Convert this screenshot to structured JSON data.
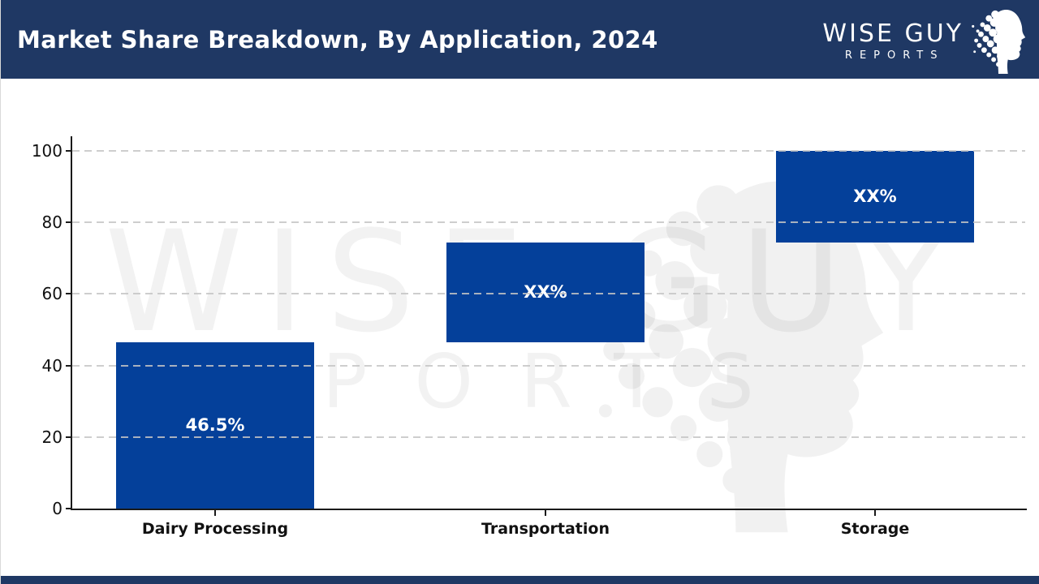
{
  "header": {
    "title": "Market Share Breakdown, By Application, 2024",
    "bg_color": "#1f3864",
    "logo": {
      "line1": "WISE GUY",
      "line2": "REPORTS"
    }
  },
  "watermark": {
    "line1": "WISE GUY",
    "line2": "REPORTS"
  },
  "footer": {
    "bg_color": "#1f3864"
  },
  "chart_data": {
    "type": "bar",
    "subtype": "floating-waterfall",
    "title": "Market Share Breakdown, By Application, 2024",
    "categories": [
      "Dairy Processing",
      "Transportation",
      "Storage"
    ],
    "segments": [
      {
        "category": "Dairy Processing",
        "start": 0,
        "end": 46.5,
        "label": "46.5%"
      },
      {
        "category": "Transportation",
        "start": 46.5,
        "end": 74.4,
        "label": "XX%"
      },
      {
        "category": "Storage",
        "start": 74.4,
        "end": 100,
        "label": "XX%"
      }
    ],
    "xlabel": "",
    "ylabel": "",
    "ylim": [
      0,
      100
    ],
    "yticks": [
      0,
      20,
      40,
      60,
      80,
      100
    ],
    "grid": "dashed-horizontal",
    "legend": "none",
    "bar_color": "#04409a",
    "bar_label_color": "#ffffff",
    "axis_color": "#1a1a1a",
    "grid_color": "#c5c5c5"
  }
}
